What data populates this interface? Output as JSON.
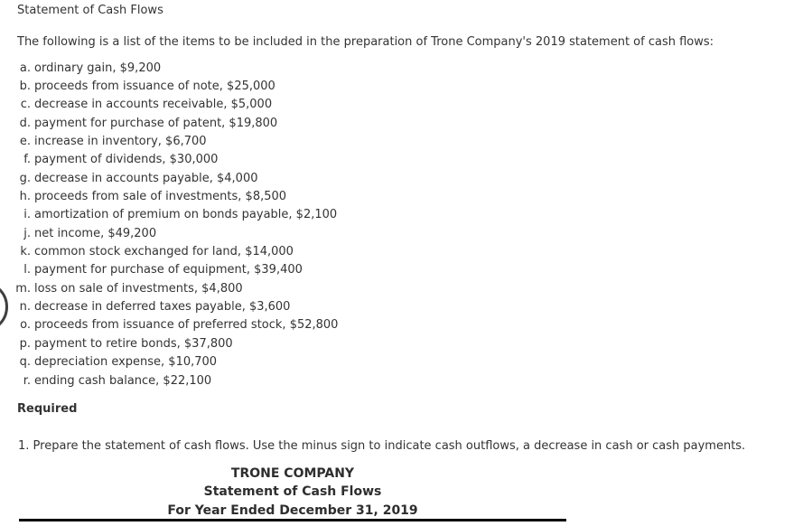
{
  "page": {
    "title": "Statement of Cash Flows",
    "intro": "The following is a list of the items to be included in the preparation of Trone Company's 2019 statement of cash flows:",
    "items": [
      {
        "label": "a.",
        "text": "ordinary gain, $9,200"
      },
      {
        "label": "b.",
        "text": "proceeds from issuance of note, $25,000"
      },
      {
        "label": "c.",
        "text": "decrease in accounts receivable, $5,000"
      },
      {
        "label": "d.",
        "text": "payment for purchase of patent, $19,800"
      },
      {
        "label": "e.",
        "text": "increase in inventory, $6,700"
      },
      {
        "label": "f.",
        "text": "payment of dividends, $30,000"
      },
      {
        "label": "g.",
        "text": "decrease in accounts payable, $4,000"
      },
      {
        "label": "h.",
        "text": "proceeds from sale of investments, $8,500"
      },
      {
        "label": "i.",
        "text": "amortization of premium on bonds payable, $2,100"
      },
      {
        "label": "j.",
        "text": "net income, $49,200"
      },
      {
        "label": "k.",
        "text": "common stock exchanged for land, $14,000"
      },
      {
        "label": "l.",
        "text": "payment for purchase of equipment, $39,400"
      },
      {
        "label": "m.",
        "text": "loss on sale of investments, $4,800"
      },
      {
        "label": "n.",
        "text": "decrease in deferred taxes payable, $3,600"
      },
      {
        "label": "o.",
        "text": "proceeds from issuance of preferred stock, $52,800"
      },
      {
        "label": "p.",
        "text": "payment to retire bonds, $37,800"
      },
      {
        "label": "q.",
        "text": "depreciation expense, $10,700"
      },
      {
        "label": "r.",
        "text": "ending cash balance, $22,100"
      }
    ],
    "required_heading": "Required",
    "instruction": "1. Prepare the statement of cash flows. Use the minus sign to indicate cash outflows, a decrease in cash or cash payments.",
    "statement_header": {
      "company": "TRONE COMPANY",
      "title": "Statement of Cash Flows",
      "period": "For Year Ended December 31, 2019"
    },
    "colors": {
      "text": "#333333",
      "rule": "#000000"
    }
  }
}
